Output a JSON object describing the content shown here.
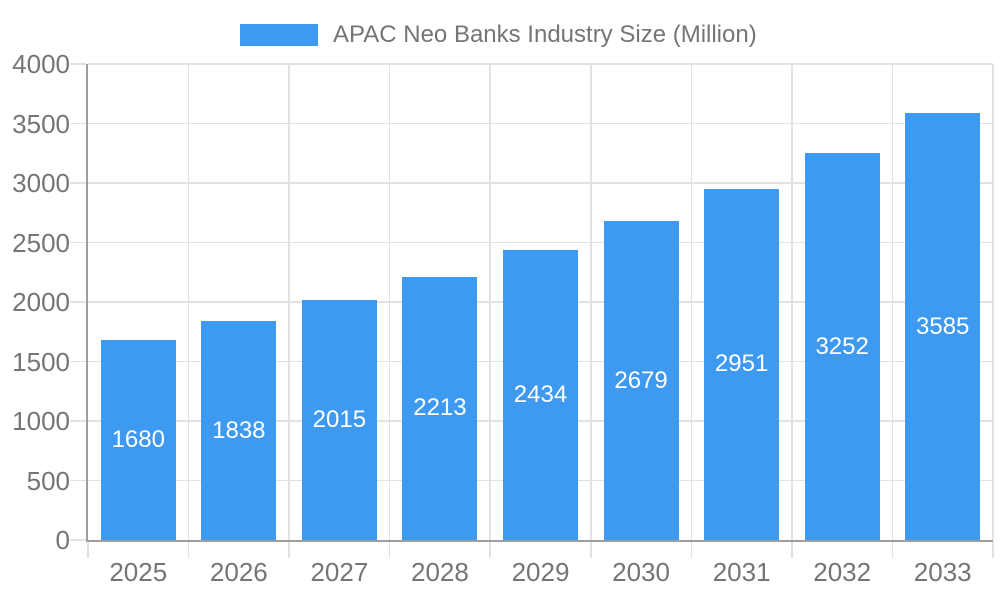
{
  "legend": {
    "label": "APAC Neo Banks Industry Size (Million)"
  },
  "chart_data": {
    "type": "bar",
    "title": "APAC Neo Banks Industry Size (Million)",
    "series_name": "APAC Neo Banks Industry Size (Million)",
    "categories": [
      "2025",
      "2026",
      "2027",
      "2028",
      "2029",
      "2030",
      "2031",
      "2032",
      "2033"
    ],
    "values": [
      1680,
      1838,
      2015,
      2213,
      2434,
      2679,
      2951,
      3252,
      3585
    ],
    "xlabel": "",
    "ylabel": "",
    "ylim": [
      0,
      4000
    ],
    "ytick_step": 500,
    "yticks": [
      0,
      500,
      1000,
      1500,
      2000,
      2500,
      3000,
      3500,
      4000
    ],
    "grid": true,
    "legend_position": "top",
    "value_labels": "inside-center",
    "colors": {
      "bar": "#3D9AF0",
      "bar_label": "#ffffff",
      "axis_text": "#757575",
      "axis_line": "#9e9e9e",
      "gridline": "#e2e2e2",
      "background": "#ffffff"
    }
  }
}
